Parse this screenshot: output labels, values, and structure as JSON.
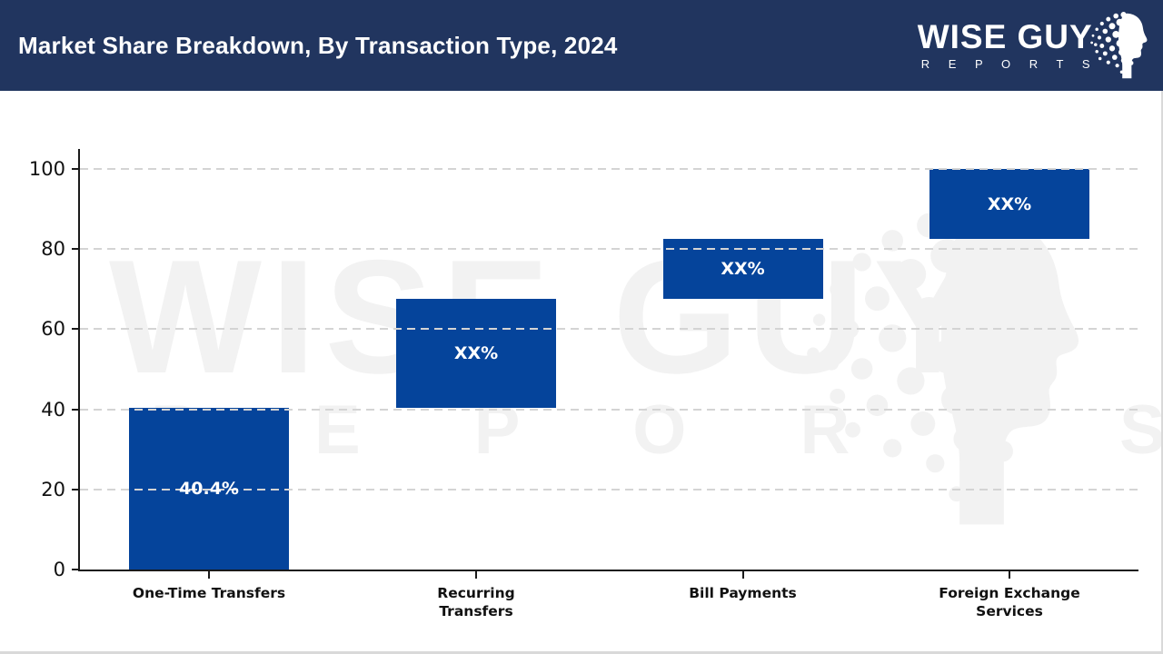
{
  "header": {
    "title": "Market Share Breakdown, By Transaction Type, 2024",
    "logo": {
      "wordmark": "WISE GUY",
      "subtext": "R E P O R T S"
    }
  },
  "watermark": {
    "line1": "WISE GUY",
    "line2": "R E P O R T S"
  },
  "colors": {
    "header_bg": "#21355F",
    "bar": "#05449B",
    "grid": "#d4d4d4",
    "axis": "#1a1a1a",
    "bar_label": "#ffffff",
    "watermark": "#f2f2f2"
  },
  "chart_data": {
    "type": "bar",
    "subtype": "waterfall-floating-bars",
    "title": "Market Share Breakdown, By Transaction Type, 2024",
    "categories": [
      "One-Time Transfers",
      "Recurring Transfers",
      "Bill Payments",
      "Foreign Exchange Services"
    ],
    "categories_wrapped": [
      [
        "One-Time Transfers"
      ],
      [
        "Recurring",
        "Transfers"
      ],
      [
        "Bill Payments"
      ],
      [
        "Foreign Exchange",
        "Services"
      ]
    ],
    "segments": [
      {
        "category": "One-Time Transfers",
        "start": 0,
        "end": 40.4,
        "label": "40.4%"
      },
      {
        "category": "Recurring Transfers",
        "start": 40.4,
        "end": 67.5,
        "label": "XX%"
      },
      {
        "category": "Bill Payments",
        "start": 67.5,
        "end": 82.5,
        "label": "XX%"
      },
      {
        "category": "Foreign Exchange Services",
        "start": 82.5,
        "end": 100,
        "label": "XX%"
      }
    ],
    "xlabel": "",
    "ylabel": "",
    "ylim": [
      0,
      100
    ],
    "yticks": [
      0,
      20,
      40,
      60,
      80,
      100
    ],
    "grid": "horizontal-dashed-above-bars",
    "legend": false
  }
}
